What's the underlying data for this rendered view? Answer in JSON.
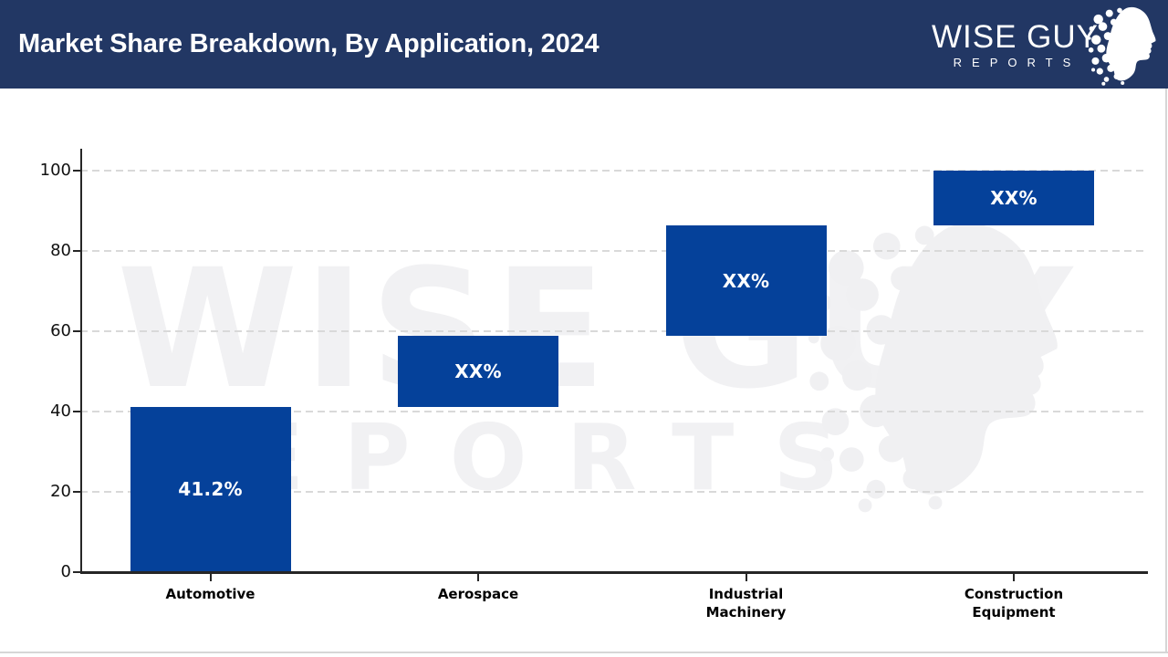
{
  "header": {
    "title": "Market Share Breakdown, By Application, 2024",
    "logo": {
      "line1": "WISE GUY",
      "line2": "REPORTS"
    }
  },
  "watermark": {
    "line1": "WISE GUY",
    "line2": "REPORTS"
  },
  "chart_data": {
    "type": "bar",
    "subtype": "waterfall",
    "title": "Market Share Breakdown, By Application, 2024",
    "categories": [
      "Automotive",
      "Aerospace",
      "Industrial\nMachinery",
      "Construction\nEquipment"
    ],
    "segments": [
      {
        "category": "Automotive",
        "start": 0,
        "end": 41.2,
        "value": 41.2,
        "label": "41.2%"
      },
      {
        "category": "Aerospace",
        "start": 41.2,
        "end": 58.8,
        "value": 17.6,
        "label": "XX%"
      },
      {
        "category": "Industrial Machinery",
        "start": 58.8,
        "end": 86.3,
        "value": 27.5,
        "label": "XX%"
      },
      {
        "category": "Construction Equipment",
        "start": 86.3,
        "end": 100,
        "value": 13.7,
        "label": "XX%"
      }
    ],
    "yticks": [
      0,
      20,
      40,
      60,
      80,
      100
    ],
    "ylim": [
      0,
      105.5
    ],
    "xlabel": "",
    "ylabel": "",
    "grid": "horizontal-dashed",
    "legend": "none",
    "bar_color": "#05419A",
    "bar_label_color": "#ffffff",
    "axis_color": "#262626",
    "gridline_color": "#d9d9d9",
    "header_bg_color": "#223764",
    "watermark_color": "#f1f1f3"
  }
}
